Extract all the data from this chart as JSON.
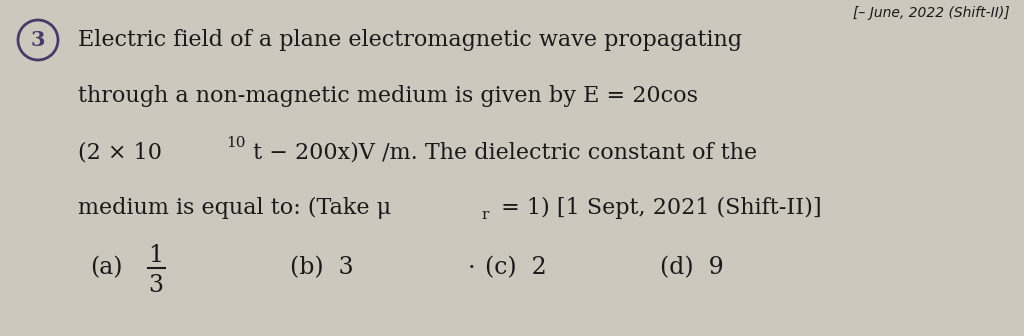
{
  "background_color": "#ccc8be",
  "top_right_text": "[– June, 2022 (Shift-II)]",
  "text_color": "#1a1a1a",
  "circle_color": "#4a3a6a",
  "line1": "Electric field of a plane electromagnetic wave propagating",
  "line2": "through a non-magnetic medium is given by E = 20cos",
  "line3a": "(2 × 10",
  "line3_sup": "10",
  "line3b": " t − 200x)V /m. The dielectric constant of the",
  "line4a": "medium is equal to: (Take μ",
  "line4_sub": "r",
  "line4b": " = 1) [1 Sept, 2021 (Shift-II)]",
  "opt_a": "(a)",
  "opt_a_num": "1",
  "opt_a_den": "3",
  "opt_b": "(b)  3",
  "opt_c": "(c)  2",
  "opt_d": "(d)  9",
  "fs_main": 16,
  "fs_small": 11,
  "fs_opt": 17,
  "fs_circle": 15,
  "lh": 0.195
}
